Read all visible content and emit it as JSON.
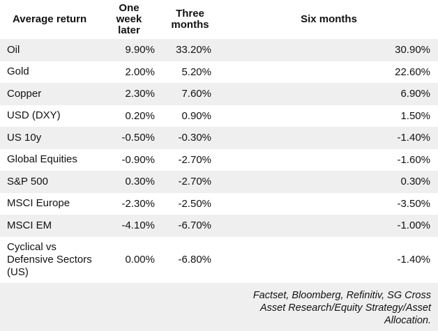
{
  "table": {
    "headers": {
      "average_return": "Average return",
      "one_week": "One\nweek\nlater",
      "three_months": "Three\nmonths",
      "six_months": "Six months"
    },
    "rows": [
      {
        "label": "Oil",
        "one_week": "9.90%",
        "three_months": "33.20%",
        "six_months": "30.90%"
      },
      {
        "label": "Gold",
        "one_week": "2.00%",
        "three_months": "5.20%",
        "six_months": "22.60%"
      },
      {
        "label": "Copper",
        "one_week": "2.30%",
        "three_months": "7.60%",
        "six_months": "6.90%"
      },
      {
        "label": "USD (DXY)",
        "one_week": "0.20%",
        "three_months": "0.90%",
        "six_months": "1.50%"
      },
      {
        "label": "US 10y",
        "one_week": "-0.50%",
        "three_months": "-0.30%",
        "six_months": "-1.40%"
      },
      {
        "label": "Global Equities",
        "one_week": "-0.90%",
        "three_months": "-2.70%",
        "six_months": "-1.60%"
      },
      {
        "label": "S&P 500",
        "one_week": "0.30%",
        "three_months": "-2.70%",
        "six_months": "0.30%"
      },
      {
        "label": "MSCI Europe",
        "one_week": "-2.30%",
        "three_months": "-2.50%",
        "six_months": "-3.50%"
      },
      {
        "label": "MSCI EM",
        "one_week": "-4.10%",
        "three_months": "-6.70%",
        "six_months": "-1.00%"
      },
      {
        "label": "Cyclical vs\nDefensive Sectors\n(US)",
        "one_week": "0.00%",
        "three_months": "-6.80%",
        "six_months": "-1.40%"
      }
    ],
    "zebra_color": "#efefef",
    "text_color": "#111111"
  },
  "footer": {
    "source": "Factset, Bloomberg, Refinitiv, SG Cross\nAsset Research/Equity Strategy/Asset\nAllocation."
  },
  "chart_data": {
    "type": "table",
    "title": "Average return",
    "columns": [
      "Average return",
      "One week later",
      "Three months",
      "Six months"
    ],
    "units": "%",
    "rows": [
      [
        "Oil",
        9.9,
        33.2,
        30.9
      ],
      [
        "Gold",
        2.0,
        5.2,
        22.6
      ],
      [
        "Copper",
        2.3,
        7.6,
        6.9
      ],
      [
        "USD (DXY)",
        0.2,
        0.9,
        1.5
      ],
      [
        "US 10y",
        -0.5,
        -0.3,
        -1.4
      ],
      [
        "Global Equities",
        -0.9,
        -2.7,
        -1.6
      ],
      [
        "S&P 500",
        0.3,
        -2.7,
        0.3
      ],
      [
        "MSCI Europe",
        -2.3,
        -2.5,
        -3.5
      ],
      [
        "MSCI EM",
        -4.1,
        -6.7,
        -1.0
      ],
      [
        "Cyclical vs Defensive Sectors (US)",
        0.0,
        -6.8,
        -1.4
      ]
    ],
    "source": "Factset, Bloomberg, Refinitiv, SG Cross Asset Research/Equity Strategy/Asset Allocation.",
    "layout": {
      "zebra_striping": true,
      "grid": false,
      "value_alignment": "right"
    }
  }
}
